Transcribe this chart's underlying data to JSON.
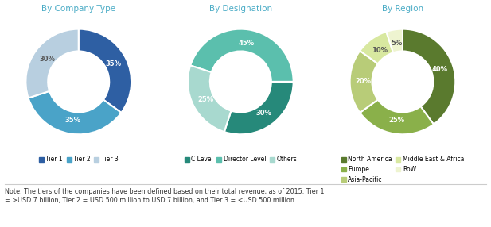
{
  "chart1": {
    "title": "By Company Type",
    "values": [
      35,
      35,
      30
    ],
    "labels": [
      "35%",
      "35%",
      "30%"
    ],
    "colors": [
      "#2e5fa3",
      "#4aa3c8",
      "#b8cfe0"
    ],
    "label_colors": [
      "white",
      "white",
      "#555555"
    ],
    "legend": [
      "Tier 1",
      "Tier 2",
      "Tier 3"
    ],
    "legend_colors": [
      "#2e5fa3",
      "#4aa3c8",
      "#b8cfe0"
    ],
    "start_angle": 90
  },
  "chart2": {
    "title": "By Designation",
    "values": [
      45,
      30,
      25
    ],
    "labels": [
      "45%",
      "30%",
      "25%"
    ],
    "colors": [
      "#5bbfad",
      "#26897a",
      "#a8d9cf"
    ],
    "label_colors": [
      "white",
      "white",
      "white"
    ],
    "legend": [
      "C Level",
      "Director Level",
      "Others"
    ],
    "legend_colors": [
      "#26897a",
      "#5bbfad",
      "#a8d9cf"
    ],
    "start_angle": 162
  },
  "chart3": {
    "title": "By Region",
    "values": [
      40,
      25,
      20,
      10,
      5
    ],
    "labels": [
      "40%",
      "25%",
      "20%",
      "10%",
      "5%"
    ],
    "colors": [
      "#5a7a2e",
      "#8ab04a",
      "#b8cc78",
      "#d8e8a0",
      "#eef4d0"
    ],
    "label_colors": [
      "white",
      "white",
      "white",
      "#555555",
      "#555555"
    ],
    "legend": [
      "North America",
      "Europe",
      "Asia-Pacific",
      "Middle East & Africa",
      "RoW"
    ],
    "legend_colors": [
      "#5a7a2e",
      "#8ab04a",
      "#b8cc78",
      "#d8e8a0",
      "#eef4d0"
    ],
    "start_angle": 90
  },
  "note": "Note: The tiers of the companies have been defined based on their total revenue, as of 2015: Tier 1\n= >USD 7 billion, Tier 2 = USD 500 million to USD 7 billion, and Tier 3 = <USD 500 million.",
  "title_color": "#4bacc6",
  "background_color": "#ffffff"
}
